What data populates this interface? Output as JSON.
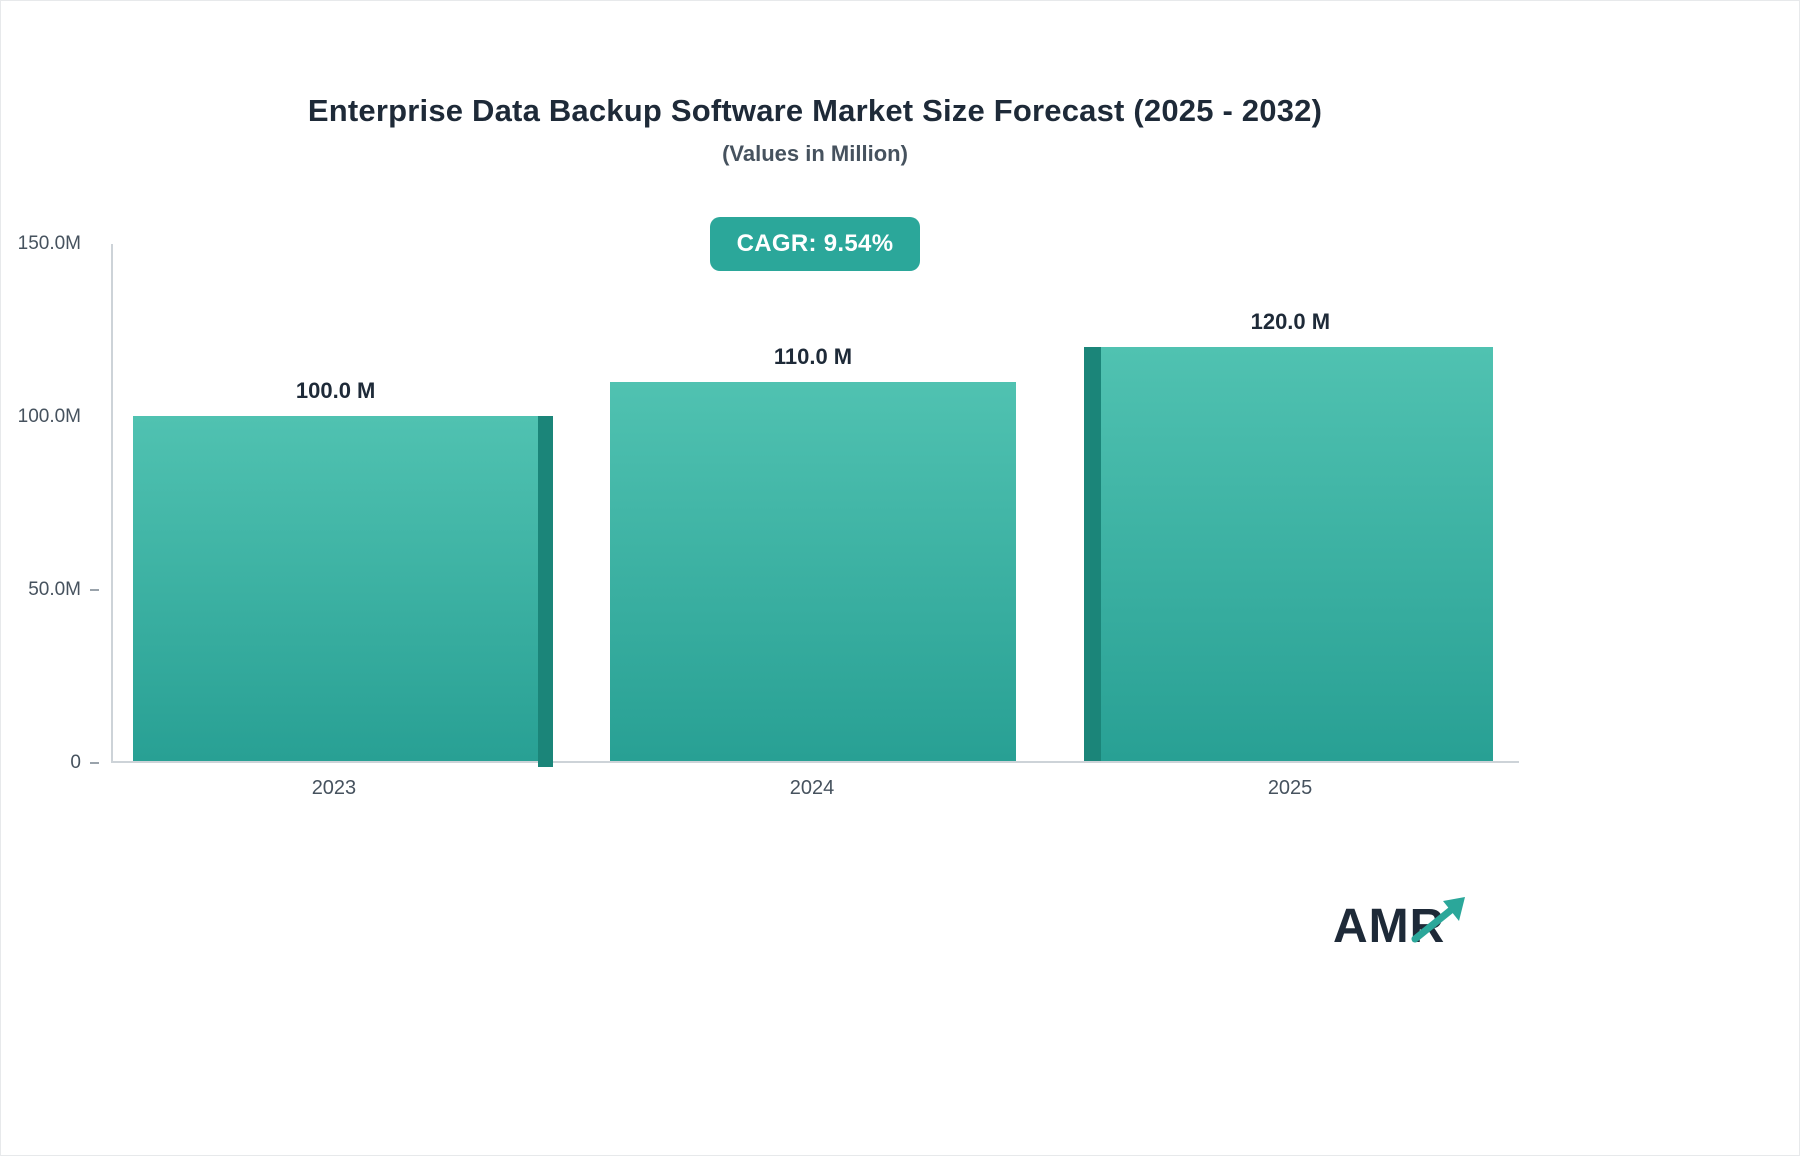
{
  "colors": {
    "accent": "#2BA79A",
    "bar_top": "#50C2B1",
    "bar_bottom": "#28A094",
    "bar_edge": "#1B8579",
    "axis_line": "#CDD3D8",
    "title_color": "#1E2A38",
    "text_muted": "#46525E"
  },
  "logo": {
    "text": "AMR"
  },
  "chart_data": {
    "type": "bar",
    "title": "Enterprise Data Backup Software Market Size Forecast (2025 - 2032)",
    "subtitle": "(Values in Million)",
    "annotation": "CAGR: 9.54%",
    "categories": [
      "2023",
      "2024",
      "2025"
    ],
    "values": [
      100.0,
      110.0,
      120.0
    ],
    "value_labels": [
      "100.0 M",
      "110.0 M",
      "120.0 M"
    ],
    "xlabel": "",
    "ylabel": "",
    "ylim": [
      0,
      150
    ],
    "yticks": [
      "150.0M",
      "100.0M",
      "50.0M",
      "0"
    ],
    "grid": false,
    "legend": null,
    "units": "Million"
  }
}
